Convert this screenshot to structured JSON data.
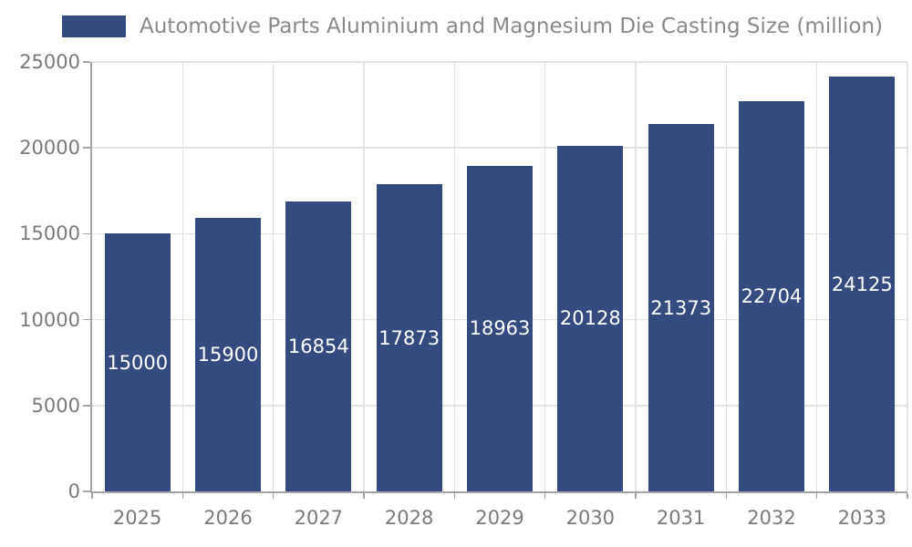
{
  "chart_data": {
    "type": "bar",
    "title": "Automotive Parts Aluminium and Magnesium Die Casting Size (million)",
    "legend": {
      "position": "top-left",
      "label": "Automotive Parts Aluminium and Magnesium Die Casting Size (million)"
    },
    "categories": [
      "2025",
      "2026",
      "2027",
      "2028",
      "2029",
      "2030",
      "2031",
      "2032",
      "2033"
    ],
    "series": [
      {
        "name": "Automotive Parts Aluminium and Magnesium Die Casting Size (million)",
        "values": [
          15000,
          15900,
          16854,
          17873,
          18963,
          20128,
          21373,
          22704,
          24125
        ]
      }
    ],
    "bar_value_labels": [
      "15000",
      "15900",
      "16854",
      "17873",
      "18963",
      "20128",
      "21373",
      "22704",
      "24125"
    ],
    "value_label_position": "inside-middle",
    "xlabel": "",
    "ylabel": "",
    "ylim": [
      0,
      25000
    ],
    "yticks": [
      0,
      5000,
      10000,
      15000,
      20000,
      25000
    ],
    "grid": true,
    "colors": {
      "bar": "#364a82",
      "bar_label": "#ffffff",
      "grid": "#e2e2e2",
      "axis": "#a3a3a3",
      "tick_label": "#7a7a7a",
      "title": "#8a8a8a",
      "background": "#ffffff"
    }
  }
}
